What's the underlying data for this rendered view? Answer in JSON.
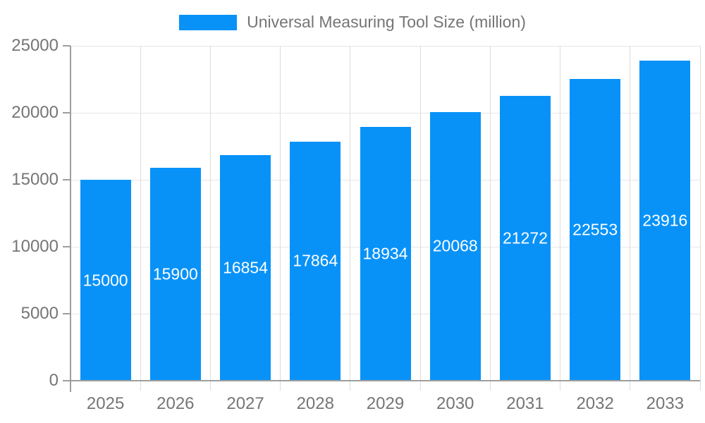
{
  "legend": {
    "label": "Universal Measuring Tool Size (million)"
  },
  "chart_data": {
    "type": "bar",
    "title": "Universal Measuring Tool Size (million)",
    "series_name": "Universal Measuring Tool Size (million)",
    "categories": [
      "2025",
      "2026",
      "2027",
      "2028",
      "2029",
      "2030",
      "2031",
      "2032",
      "2033"
    ],
    "values": [
      15000,
      15900,
      16854,
      17864,
      18934,
      20068,
      21272,
      22553,
      23916
    ],
    "xlabel": "",
    "ylabel": "",
    "ylim": [
      0,
      25000
    ],
    "yticks": [
      0,
      5000,
      10000,
      15000,
      20000,
      25000
    ],
    "grid": true,
    "legend_position": "top",
    "bar_color": "#0892f8",
    "value_label_color": "#ffffff",
    "axis_text_color": "#757575"
  }
}
